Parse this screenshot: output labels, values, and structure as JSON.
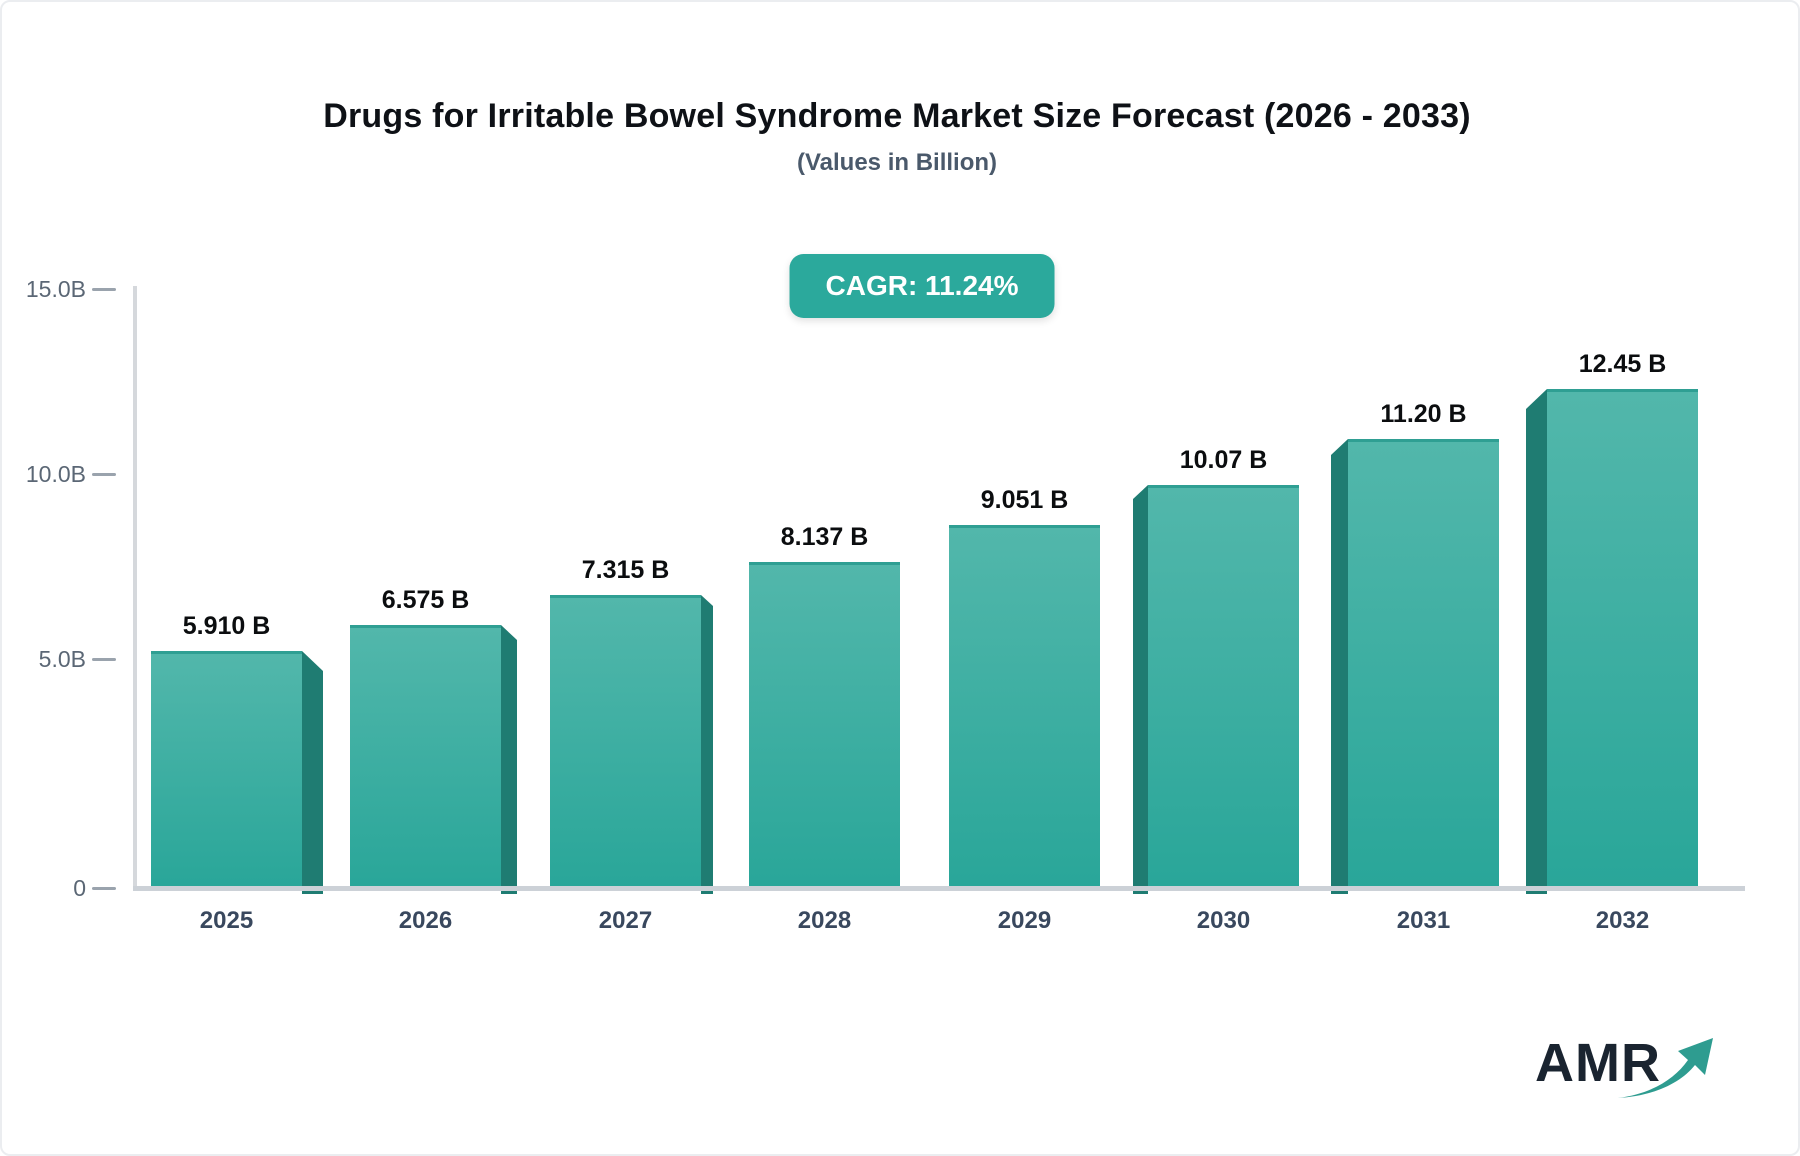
{
  "header": {
    "title": "Drugs for Irritable Bowel Syndrome Market Size Forecast (2026 - 2033)",
    "subtitle": "(Values in Billion)"
  },
  "badge": {
    "label": "CAGR: 11.24%",
    "bg": "#2BA99C",
    "text_color": "#FFFFFF"
  },
  "chart_data": {
    "type": "bar",
    "title": "Drugs for Irritable Bowel Syndrome Market Size Forecast (2026 - 2033)",
    "subtitle": "(Values in Billion)",
    "annotation": "CAGR: 11.24%",
    "categories": [
      "2025",
      "2026",
      "2027",
      "2028",
      "2029",
      "2030",
      "2031",
      "2032"
    ],
    "values": [
      5.91,
      6.575,
      7.315,
      8.137,
      9.051,
      10.07,
      11.2,
      12.45
    ],
    "value_labels": [
      "5.910 B",
      "6.575 B",
      "7.315 B",
      "8.137 B",
      "9.051 B",
      "10.07 B",
      "11.20 B",
      "12.45 B"
    ],
    "yticks": [
      "15.0B",
      "10.0B",
      "5.0B",
      "0"
    ],
    "ytick_values": [
      15,
      10,
      5,
      0
    ],
    "ylim": [
      0,
      15
    ],
    "xlabel": "",
    "ylabel": "",
    "grid": false,
    "legend": false,
    "bar_style": "3d-perspective",
    "colors": {
      "bar_top": "#52B7AB",
      "bar_bottom": "#29A699",
      "bar_side": "#1F7C72",
      "bar_top_edge": "#2F9F93",
      "axis_line": "#D5D8DC",
      "baseline": "#CCD1D7",
      "tick_text": "#5B6775",
      "category_text": "#39485E",
      "value_text": "#0B0D0F",
      "accent": "#2BA99C"
    }
  },
  "logo": {
    "text": "AMR",
    "text_color": "#1A2430",
    "arrow_color": "#2E9C90"
  }
}
